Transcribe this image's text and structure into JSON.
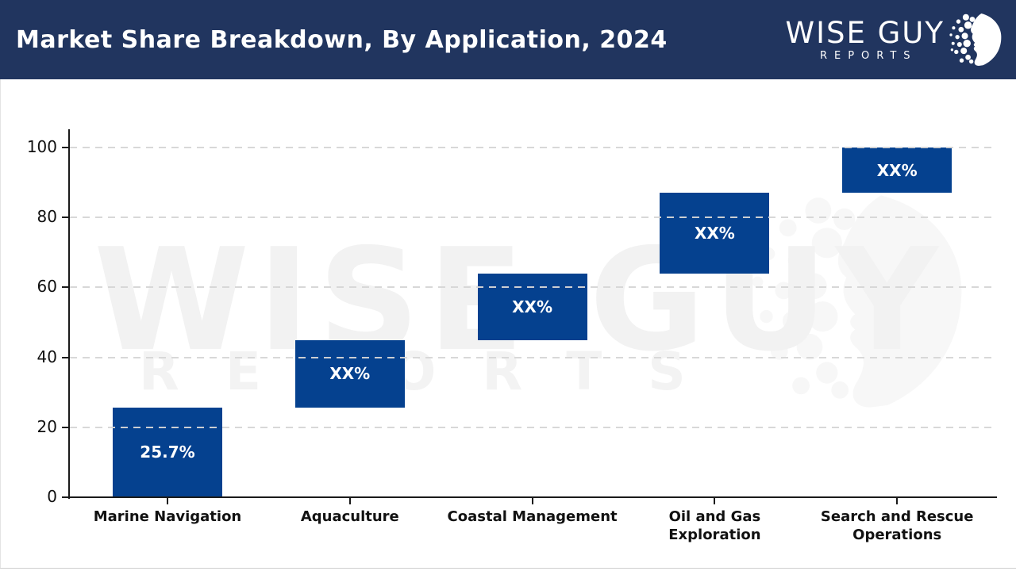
{
  "header": {
    "title": "Market Share Breakdown, By Application, 2024",
    "bg_color": "#21355f",
    "logo": {
      "line1": "WISE GUY",
      "line2": "REPORTS"
    }
  },
  "watermark": {
    "line1": "WISE GUY",
    "line2": "REPORTS"
  },
  "chart_data": {
    "type": "bar",
    "subtype": "waterfall-floating-bars",
    "title": "Market Share Breakdown, By Application, 2024",
    "categories": [
      "Marine Navigation",
      "Aquaculture",
      "Coastal Management",
      "Oil and Gas\nExploration",
      "Search and Rescue\nOperations"
    ],
    "segments": [
      {
        "start": 0,
        "end": 25.7,
        "label": "25.7%"
      },
      {
        "start": 25.7,
        "end": 45,
        "label": "XX%"
      },
      {
        "start": 45,
        "end": 64,
        "label": "XX%"
      },
      {
        "start": 64,
        "end": 87,
        "label": "XX%"
      },
      {
        "start": 87,
        "end": 100,
        "label": "XX%"
      }
    ],
    "yticks": [
      0,
      20,
      40,
      60,
      80,
      100
    ],
    "ylim": [
      0,
      100
    ],
    "xlabel": "",
    "ylabel": "",
    "grid": true,
    "legend": false,
    "bar_color": "#05418f",
    "grid_color": "#d6d6d6",
    "axis_color": "#1a1a1a",
    "label_color": "#ffffff"
  }
}
